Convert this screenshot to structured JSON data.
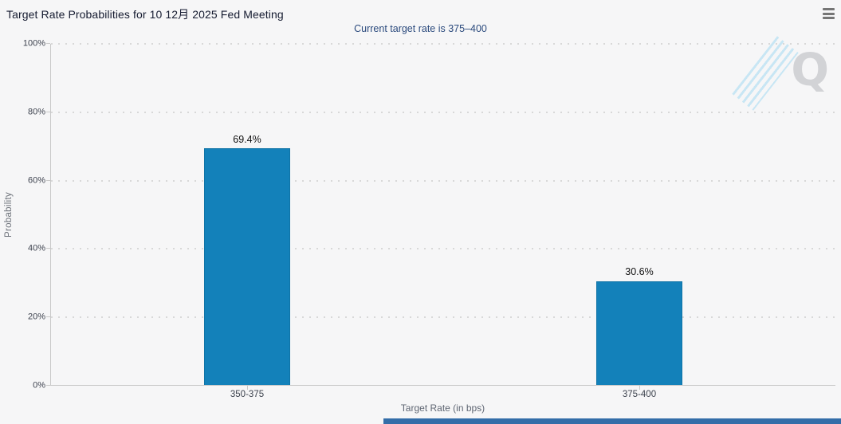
{
  "header": {
    "title": "Target Rate Probabilities for 10 12月 2025 Fed Meeting",
    "menu_icon": "hamburger-menu-icon"
  },
  "subtitle": "Current target rate is 375–400",
  "watermark": {
    "letter": "Q"
  },
  "colors": {
    "background": "#f6f6f7",
    "bar": "#1381ba",
    "title_navy": "#151b30",
    "subtitle_blue": "#2b4a7d",
    "axis_gray": "#c8c8c8",
    "scroll_thumb": "#336da8"
  },
  "chart_data": {
    "type": "bar",
    "title": "Target Rate Probabilities for 10 12月 2025 Fed Meeting",
    "subtitle": "Current target rate is 375–400",
    "categories": [
      "350-375",
      "375-400"
    ],
    "values": [
      69.4,
      30.6
    ],
    "value_labels": [
      "69.4%",
      "30.6%"
    ],
    "xlabel": "Target Rate (in bps)",
    "ylabel": "Probability",
    "ylim": [
      0,
      100
    ],
    "yticks": [
      {
        "label": "0%",
        "value": 0
      },
      {
        "label": "20%",
        "value": 20
      },
      {
        "label": "40%",
        "value": 40
      },
      {
        "label": "60%",
        "value": 60
      },
      {
        "label": "80%",
        "value": 80
      },
      {
        "label": "100%",
        "value": 100
      }
    ],
    "grid": "horizontal-dotted",
    "legend": "none",
    "bar_color": "#1381ba"
  }
}
